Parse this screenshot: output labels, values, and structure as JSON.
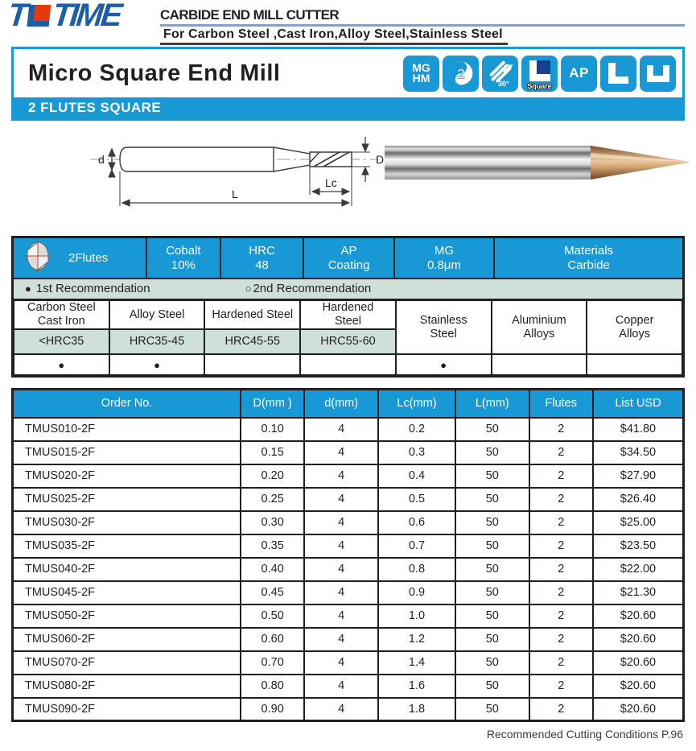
{
  "colors": {
    "accent": "#1899d6",
    "logo_blue": "#1c5fa8",
    "logo_red": "#e8380d",
    "navy_square": "#17418e",
    "light_green": "#cfe0d9",
    "border_dark": "#231f20"
  },
  "header": {
    "brand_left": "T",
    "brand_right": "TIME",
    "tagline": "CARBIDE END MILL CUTTER",
    "subtitle": "For Carbon Steel ,Cast Iron,Alloy Steel,Stainless Steel"
  },
  "title_section": {
    "title": "Micro Square End Mill",
    "banner": "2 FLUTES SQUARE",
    "badges": [
      {
        "name": "mg-hm-badge",
        "line1": "MG",
        "line2": "HM"
      },
      {
        "name": "two-flutes-badge",
        "label": "2"
      },
      {
        "name": "helix-30-badge",
        "label": "30°"
      },
      {
        "name": "square-type-badge",
        "label": "Square"
      },
      {
        "name": "ap-coating-badge",
        "label": "AP"
      },
      {
        "name": "l-shape-badge"
      },
      {
        "name": "u-shape-badge"
      }
    ]
  },
  "diagram_labels": {
    "d": "d",
    "D": "D",
    "L": "L",
    "Lc": "Lc"
  },
  "spec_header": [
    {
      "text": "2Flutes",
      "icon": "end-view-2flute"
    },
    {
      "text": "Cobalt\n10%"
    },
    {
      "text": "HRC\n48"
    },
    {
      "text": "AP\nCoating"
    },
    {
      "text": "MG\n0.8μm"
    },
    {
      "text": "Materials\nCarbide"
    }
  ],
  "recommendation": {
    "first_marker": "●",
    "first_label": "1st Recommendation",
    "second_marker": "○",
    "second_label": "2nd Recommendation"
  },
  "materials": [
    {
      "name": "Carbon Steel\nCast Iron",
      "hrc": "<HRC35",
      "dot": "●"
    },
    {
      "name": "Alloy Steel",
      "hrc": "HRC35-45",
      "dot": "●"
    },
    {
      "name": "Hardened Steel",
      "hrc": "HRC45-55",
      "dot": ""
    },
    {
      "name": "Hardened\nSteel",
      "hrc": "HRC55-60",
      "dot": ""
    },
    {
      "name": "Stainless\nSteel",
      "span": true,
      "dot": "●"
    },
    {
      "name": "Aluminium\nAlloys",
      "span": true,
      "dot": ""
    },
    {
      "name": "Copper\nAlloys",
      "span": true,
      "dot": ""
    }
  ],
  "price_table": {
    "headers": [
      "Order No.",
      "D(mm )",
      "d(mm)",
      "Lc(mm)",
      "L(mm)",
      "Flutes",
      "List USD"
    ],
    "rows": [
      [
        "TMUS010-2F",
        "0.10",
        "4",
        "0.2",
        "50",
        "2",
        "$41.80"
      ],
      [
        "TMUS015-2F",
        "0.15",
        "4",
        "0.3",
        "50",
        "2",
        "$34.50"
      ],
      [
        "TMUS020-2F",
        "0.20",
        "4",
        "0.4",
        "50",
        "2",
        "$27.90"
      ],
      [
        "TMUS025-2F",
        "0.25",
        "4",
        "0.5",
        "50",
        "2",
        "$26.40"
      ],
      [
        "TMUS030-2F",
        "0.30",
        "4",
        "0.6",
        "50",
        "2",
        "$25.00"
      ],
      [
        "TMUS035-2F",
        "0.35",
        "4",
        "0.7",
        "50",
        "2",
        "$23.50"
      ],
      [
        "TMUS040-2F",
        "0.40",
        "4",
        "0.8",
        "50",
        "2",
        "$22.00"
      ],
      [
        "TMUS045-2F",
        "0.45",
        "4",
        "0.9",
        "50",
        "2",
        "$21.30"
      ],
      [
        "TMUS050-2F",
        "0.50",
        "4",
        "1.0",
        "50",
        "2",
        "$20.60"
      ],
      [
        "TMUS060-2F",
        "0.60",
        "4",
        "1.2",
        "50",
        "2",
        "$20.60"
      ],
      [
        "TMUS070-2F",
        "0.70",
        "4",
        "1.4",
        "50",
        "2",
        "$20.60"
      ],
      [
        "TMUS080-2F",
        "0.80",
        "4",
        "1.6",
        "50",
        "2",
        "$20.60"
      ],
      [
        "TMUS090-2F",
        "0.90",
        "4",
        "1.8",
        "50",
        "2",
        "$20.60"
      ]
    ]
  },
  "footer": {
    "note": "Recommended Cutting Conditions P.96"
  }
}
